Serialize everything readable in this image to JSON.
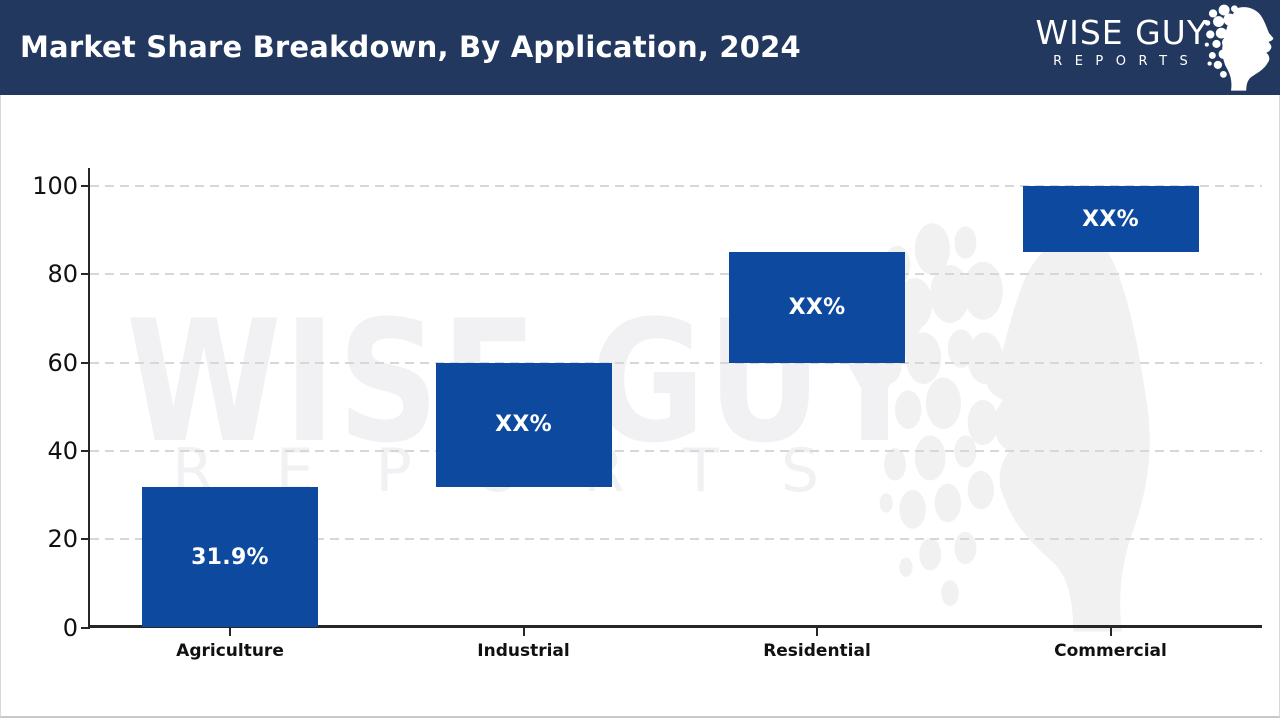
{
  "header": {
    "title": "Market Share Breakdown, By Application, 2024",
    "bg_color": "#22385f",
    "logo": {
      "name": "WISE GUY",
      "sub": "REPORTS"
    }
  },
  "watermark": {
    "line1": "WISE GUY",
    "line2": "REPORTS"
  },
  "chart_data": {
    "type": "bar",
    "subtype": "waterfall",
    "title": "Market Share Breakdown, By Application, 2024",
    "categories": [
      "Agriculture",
      "Industrial",
      "Residential",
      "Commercial"
    ],
    "segments": [
      {
        "category": "Agriculture",
        "start": 0,
        "end": 31.9,
        "label": "31.9%"
      },
      {
        "category": "Industrial",
        "start": 31.9,
        "end": 60,
        "label": "XX%"
      },
      {
        "category": "Residential",
        "start": 60,
        "end": 85,
        "label": "XX%"
      },
      {
        "category": "Commercial",
        "start": 85,
        "end": 100,
        "label": "XX%"
      }
    ],
    "yticks": [
      0,
      20,
      40,
      60,
      80,
      100
    ],
    "ylim": [
      0,
      104
    ],
    "xlabel": "",
    "ylabel": "",
    "legend": null,
    "grid": "dashed-horizontal-at-each-ytick",
    "bar_color": "#0d4a9f",
    "bar_label_color": "#ffffff",
    "axis_color": "#262626",
    "grid_color": "#d7d7d7"
  }
}
